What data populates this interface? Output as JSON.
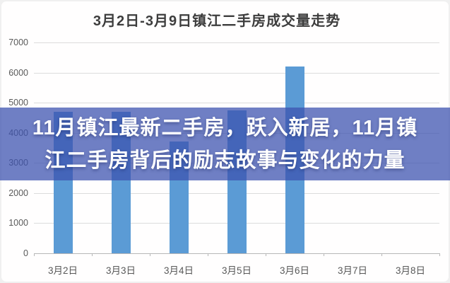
{
  "chart_data": {
    "type": "bar",
    "title": "3月2日-3月9日镇江二手房成交量走势",
    "categories": [
      "3月2日",
      "3月3日",
      "3月4日",
      "3月5日",
      "3月6日",
      "3月7日",
      "3月8日"
    ],
    "values": [
      4700,
      4700,
      3700,
      4750,
      6200,
      0,
      0
    ],
    "xlabel": "",
    "ylabel": "",
    "ylim": [
      0,
      7000
    ],
    "ytick_labels": [
      "7000",
      "6000",
      "5000",
      "4000",
      "3000",
      "2000",
      "1000",
      "0"
    ],
    "grid": true,
    "legend": false,
    "bar_color": "#5b9bd5",
    "gridline_color": "#dcdcdc",
    "axis_color": "#b7b7b7",
    "label_color": "#595959",
    "title_color": "#3d3d3d"
  },
  "overlay": {
    "line1": "11月镇江最新二手房，跃入新居，11月镇",
    "line2": "江二手房背后的励志故事与变化的力量",
    "bg_color": "rgba(61,82,176,0.74)",
    "text_color": "#ffffff"
  }
}
